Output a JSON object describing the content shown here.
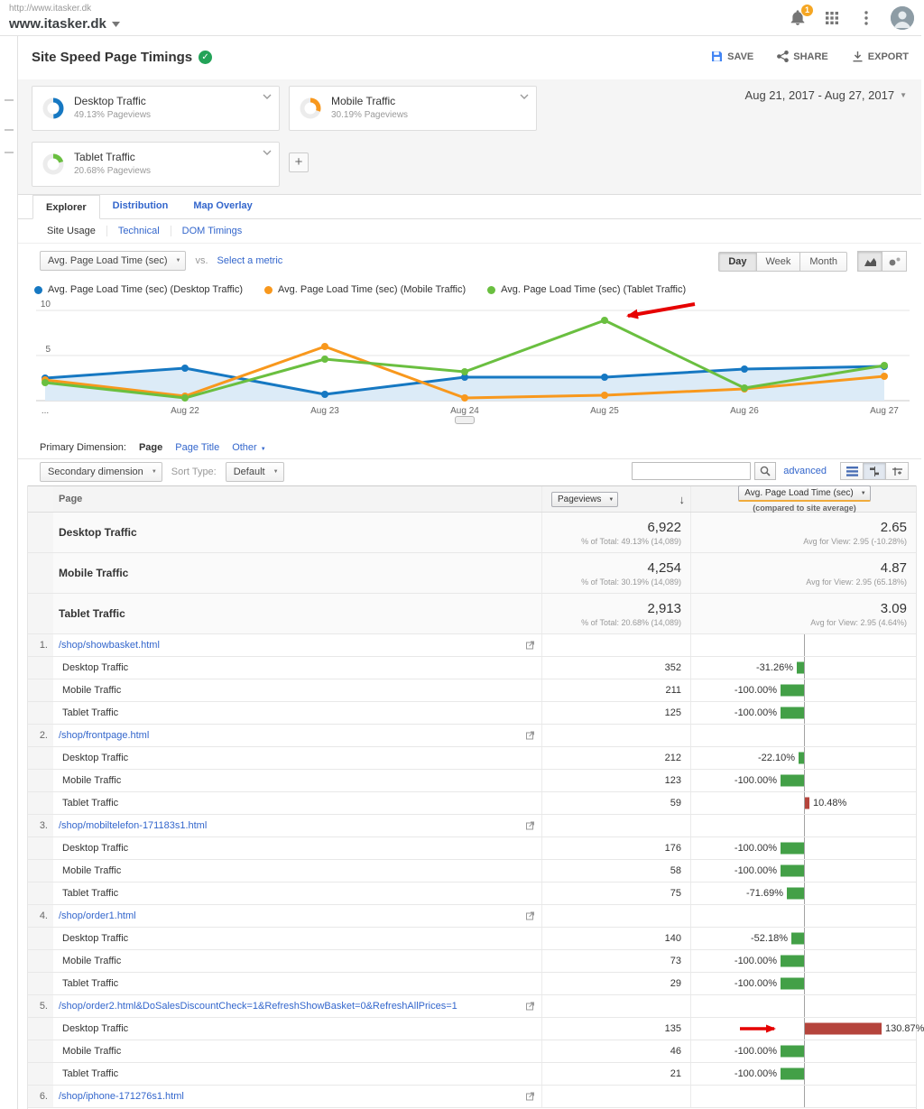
{
  "topbar": {
    "url": "http://www.itasker.dk",
    "site": "www.itasker.dk",
    "badge": "1"
  },
  "header": {
    "title": "Site Speed Page Timings",
    "save": "SAVE",
    "share": "SHARE",
    "export": "EXPORT"
  },
  "workspace": {
    "add_label": "+",
    "date_range": "Aug 21, 2017 - Aug 27, 2017"
  },
  "segments": [
    {
      "name": "Desktop Traffic",
      "sub": "49.13% Pageviews",
      "color": "#1678c2",
      "pct": 49.13
    },
    {
      "name": "Mobile Traffic",
      "sub": "30.19% Pageviews",
      "color": "#f8981d",
      "pct": 30.19
    },
    {
      "name": "Tablet Traffic",
      "sub": "20.68% Pageviews",
      "color": "#6abf40",
      "pct": 20.68
    }
  ],
  "tabs": [
    "Explorer",
    "Distribution",
    "Map Overlay"
  ],
  "subtabs": [
    "Site Usage",
    "Technical",
    "DOM Timings"
  ],
  "metric_bar": {
    "metric": "Avg. Page Load Time (sec)",
    "vs": "vs.",
    "select_metric": "Select a metric",
    "granularity": [
      "Day",
      "Week",
      "Month"
    ],
    "selected_granularity": "Day"
  },
  "chart_data": {
    "type": "line",
    "x": [
      "...",
      "Aug 22",
      "Aug 23",
      "Aug 24",
      "Aug 25",
      "Aug 26",
      "Aug 27"
    ],
    "series": [
      {
        "name": "Avg. Page Load Time (sec) (Desktop Traffic)",
        "color": "#1678c2",
        "fill": true,
        "values": [
          2.5,
          3.6,
          0.7,
          2.6,
          2.6,
          3.5,
          3.8
        ]
      },
      {
        "name": "Avg. Page Load Time (sec) (Mobile Traffic)",
        "color": "#f8981d",
        "values": [
          2.3,
          0.5,
          6.0,
          0.3,
          0.6,
          1.3,
          2.7
        ]
      },
      {
        "name": "Avg. Page Load Time (sec) (Tablet Traffic)",
        "color": "#6abf40",
        "values": [
          2.0,
          0.3,
          4.6,
          3.2,
          8.9,
          1.4,
          3.9
        ]
      }
    ],
    "ylim": [
      0,
      10
    ],
    "yticks": [
      5,
      10
    ],
    "legend_position": "top",
    "annotations": [
      "red arrow pointing at Tablet Traffic peak on Aug 25"
    ]
  },
  "dimension_bar": {
    "label": "Primary Dimension:",
    "primary": "Page",
    "alt1": "Page Title",
    "alt2": "Other"
  },
  "controls": {
    "secondary": "Secondary dimension",
    "sort_label": "Sort Type:",
    "sort_value": "Default",
    "advanced": "advanced"
  },
  "table": {
    "headers": {
      "page": "Page",
      "pageviews": "Pageviews",
      "metric": "Avg. Page Load Time (sec)",
      "metric_sub": "(compared to site average)"
    },
    "summary": [
      {
        "name": "Desktop Traffic",
        "pageviews": "6,922",
        "pv_sub": "% of Total: 49.13% (14,089)",
        "metric": "2.65",
        "metric_sub": "Avg for View: 2.95 (-10.28%)"
      },
      {
        "name": "Mobile Traffic",
        "pageviews": "4,254",
        "pv_sub": "% of Total: 30.19% (14,089)",
        "metric": "4.87",
        "metric_sub": "Avg for View: 2.95 (65.18%)"
      },
      {
        "name": "Tablet Traffic",
        "pageviews": "2,913",
        "pv_sub": "% of Total: 20.68% (14,089)",
        "metric": "3.09",
        "metric_sub": "Avg for View: 2.95 (4.64%)"
      }
    ],
    "groups": [
      {
        "num": "1.",
        "url": "/shop/showbasket.html",
        "rows": [
          {
            "label": "Desktop Traffic",
            "pageviews": "352",
            "delta": "-31.26%",
            "dir": "neg",
            "bar": 8
          },
          {
            "label": "Mobile Traffic",
            "pageviews": "211",
            "delta": "-100.00%",
            "dir": "neg",
            "bar": 26
          },
          {
            "label": "Tablet Traffic",
            "pageviews": "125",
            "delta": "-100.00%",
            "dir": "neg",
            "bar": 26
          }
        ]
      },
      {
        "num": "2.",
        "url": "/shop/frontpage.html",
        "rows": [
          {
            "label": "Desktop Traffic",
            "pageviews": "212",
            "delta": "-22.10%",
            "dir": "neg",
            "bar": 6
          },
          {
            "label": "Mobile Traffic",
            "pageviews": "123",
            "delta": "-100.00%",
            "dir": "neg",
            "bar": 26
          },
          {
            "label": "Tablet Traffic",
            "pageviews": "59",
            "delta": "10.48%",
            "dir": "pos",
            "bar": 5
          }
        ]
      },
      {
        "num": "3.",
        "url": "/shop/mobiltelefon-171183s1.html",
        "rows": [
          {
            "label": "Desktop Traffic",
            "pageviews": "176",
            "delta": "-100.00%",
            "dir": "neg",
            "bar": 26
          },
          {
            "label": "Mobile Traffic",
            "pageviews": "58",
            "delta": "-100.00%",
            "dir": "neg",
            "bar": 26
          },
          {
            "label": "Tablet Traffic",
            "pageviews": "75",
            "delta": "-71.69%",
            "dir": "neg",
            "bar": 19
          }
        ]
      },
      {
        "num": "4.",
        "url": "/shop/order1.html",
        "rows": [
          {
            "label": "Desktop Traffic",
            "pageviews": "140",
            "delta": "-52.18%",
            "dir": "neg",
            "bar": 14
          },
          {
            "label": "Mobile Traffic",
            "pageviews": "73",
            "delta": "-100.00%",
            "dir": "neg",
            "bar": 26
          },
          {
            "label": "Tablet Traffic",
            "pageviews": "29",
            "delta": "-100.00%",
            "dir": "neg",
            "bar": 26
          }
        ]
      },
      {
        "num": "5.",
        "url": "/shop/order2.html&DoSalesDiscountCheck=1&RefreshShowBasket=0&RefreshAllPrices=1",
        "rows": [
          {
            "label": "Desktop Traffic",
            "pageviews": "135",
            "delta": "130.87%",
            "dir": "pos",
            "bar": 85,
            "arrow": true
          },
          {
            "label": "Mobile Traffic",
            "pageviews": "46",
            "delta": "-100.00%",
            "dir": "neg",
            "bar": 26
          },
          {
            "label": "Tablet Traffic",
            "pageviews": "21",
            "delta": "-100.00%",
            "dir": "neg",
            "bar": 26
          }
        ]
      },
      {
        "num": "6.",
        "url": "/shop/iphone-171276s1.html",
        "rows": []
      }
    ]
  },
  "colors": {
    "bar_green": "#43a047",
    "bar_red": "#b5443c",
    "highlight_orange": "#f0ab3c",
    "link": "#3366cc",
    "annotation_red": "#e60000"
  }
}
